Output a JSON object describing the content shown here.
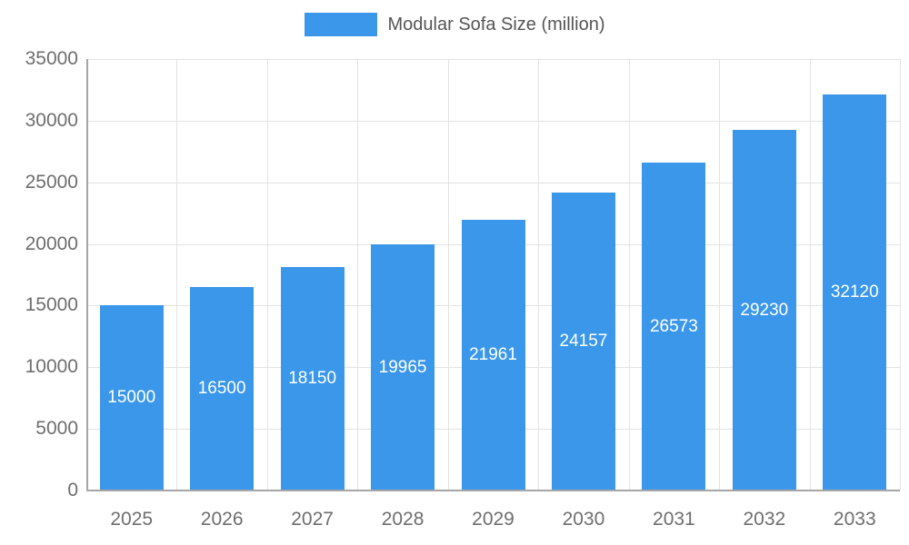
{
  "legend": {
    "label": "Modular Sofa Size (million)"
  },
  "chart_data": {
    "type": "bar",
    "title": "Modular Sofa Size (million)",
    "categories": [
      "2025",
      "2026",
      "2027",
      "2028",
      "2029",
      "2030",
      "2031",
      "2032",
      "2033"
    ],
    "values": [
      15000,
      16500,
      18150,
      19965,
      21961,
      24157,
      26573,
      29230,
      32120
    ],
    "xlabel": "",
    "ylabel": "",
    "ylim": [
      0,
      35000
    ],
    "ytick_step": 5000,
    "yticks": [
      0,
      5000,
      10000,
      15000,
      20000,
      25000,
      30000,
      35000
    ],
    "grid": true,
    "legend_position": "top",
    "bar_color": "#3b97ea",
    "value_label_color": "#ffffff",
    "axis_label_color": "#6e6e6e",
    "gridline_color": "#e3e3e3"
  }
}
